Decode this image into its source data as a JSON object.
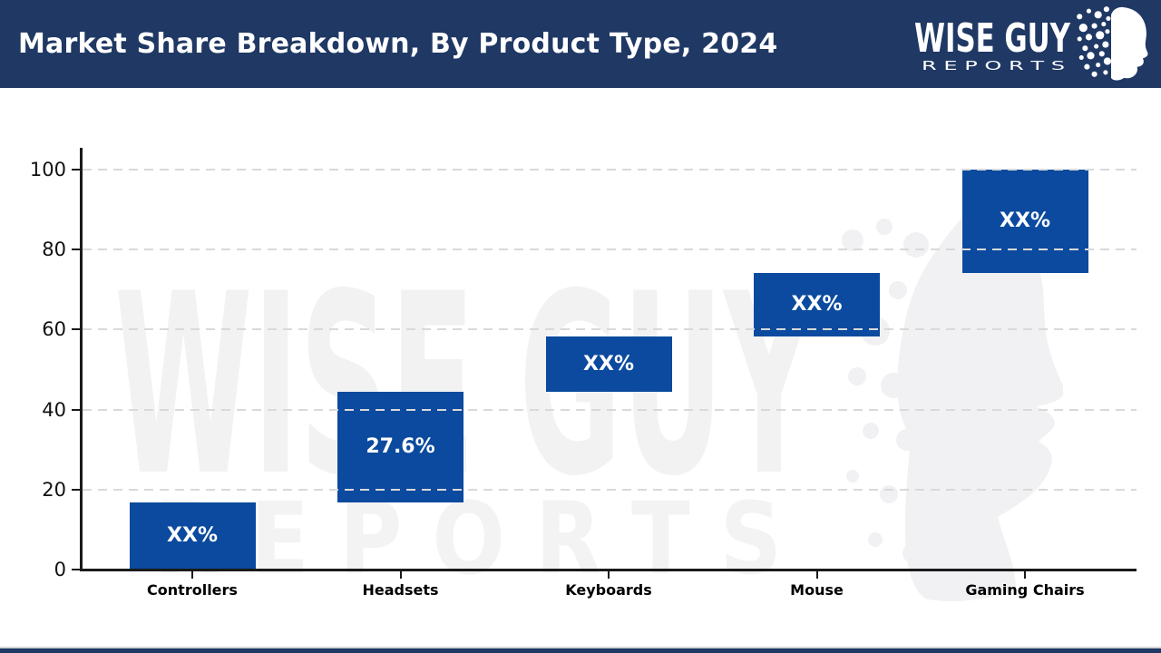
{
  "header": {
    "title": "Market Share Breakdown, By Product Type, 2024",
    "logo": {
      "name": "WISE GUY",
      "sub": "R E P O R T S"
    }
  },
  "watermark": {
    "name": "WISE GUY",
    "sub": "R E P O R T S"
  },
  "colors": {
    "header_bg": "#1f3864",
    "footer_bg": "#1f3864",
    "bar": "#0b4a9e",
    "bar_label": "#ffffff",
    "grid": "#d9d9d9",
    "axis": "#1a1a1a",
    "watermark": "#f2f2f3"
  },
  "chart_data": {
    "type": "bar",
    "subtype": "floating-waterfall",
    "title": "Market Share Breakdown, By Product Type, 2024",
    "xlabel": "",
    "ylabel": "",
    "ylim": [
      0,
      105
    ],
    "yticks": [
      0,
      20,
      40,
      60,
      80,
      100
    ],
    "grid": "horizontal-dashed",
    "legend": "none",
    "categories": [
      "Controllers",
      "Headsets",
      "Keyboards",
      "Mouse",
      "Gaming Chairs"
    ],
    "bars": [
      {
        "category": "Controllers",
        "from": 0,
        "to": 16.8,
        "label": "XX%"
      },
      {
        "category": "Headsets",
        "from": 16.8,
        "to": 44.4,
        "label": "27.6%"
      },
      {
        "category": "Keyboards",
        "from": 44.4,
        "to": 58.2,
        "label": "XX%"
      },
      {
        "category": "Mouse",
        "from": 58.2,
        "to": 74.2,
        "label": "XX%"
      },
      {
        "category": "Gaming Chairs",
        "from": 74.2,
        "to": 100,
        "label": "XX%"
      }
    ],
    "bar_color": "#0b4a9e",
    "bar_label_color": "#ffffff"
  }
}
